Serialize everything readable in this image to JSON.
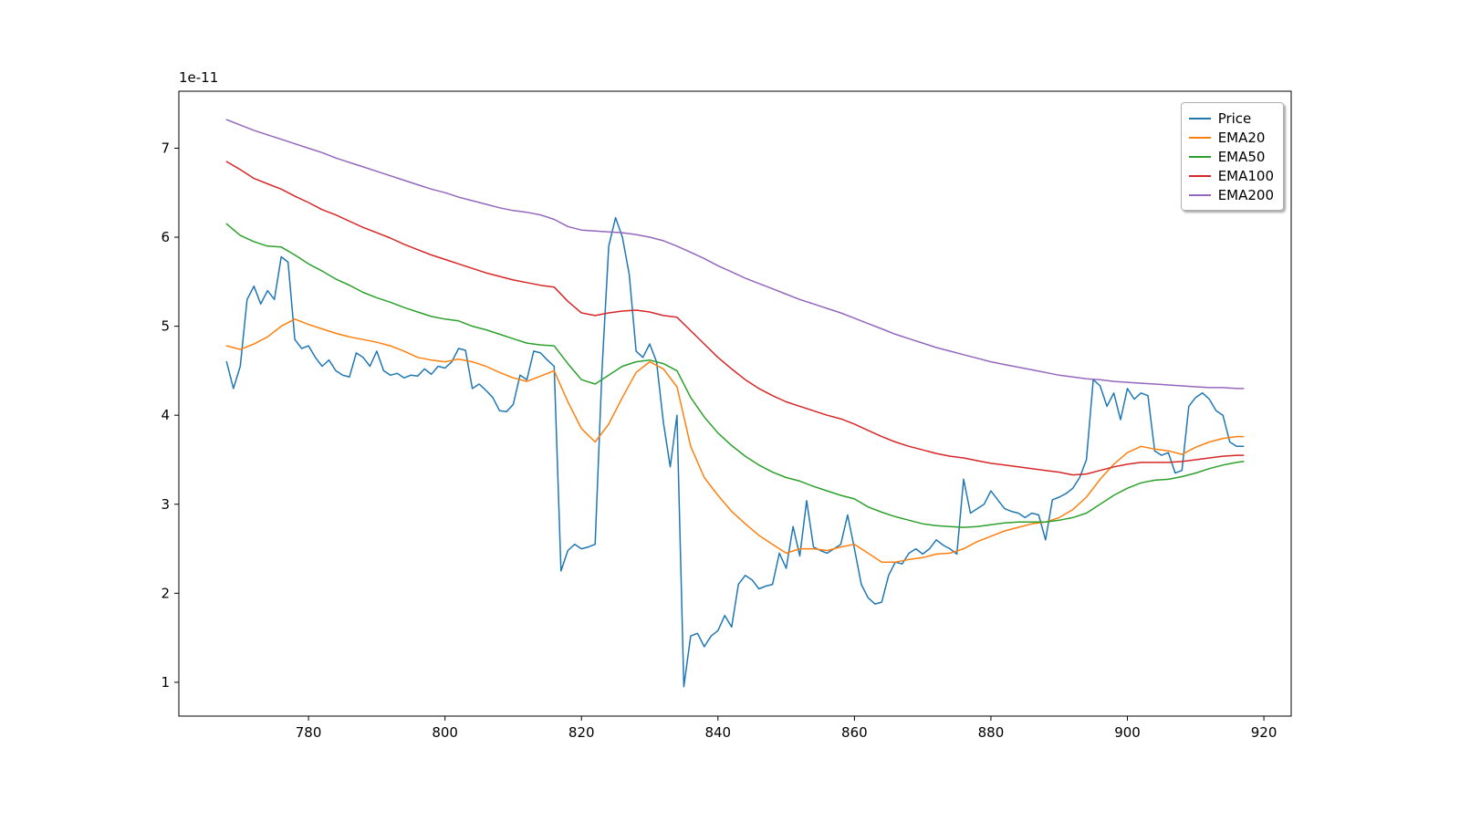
{
  "chart_data": {
    "type": "line",
    "title": "",
    "xlabel": "",
    "ylabel": "",
    "y_offset_label": "1e-11",
    "xlim": [
      761,
      924
    ],
    "ylim": [
      0.62,
      7.64
    ],
    "x_ticks": [
      780,
      800,
      820,
      840,
      860,
      880,
      900,
      920
    ],
    "y_ticks": [
      1,
      2,
      3,
      4,
      5,
      6,
      7
    ],
    "grid": false,
    "legend_position": "upper right",
    "legend_entries": [
      "Price",
      "EMA20",
      "EMA50",
      "EMA100",
      "EMA200"
    ],
    "price_x": [
      768,
      769,
      770,
      771,
      772,
      773,
      774,
      775,
      776,
      777,
      778,
      779,
      780,
      781,
      782,
      783,
      784,
      785,
      786,
      787,
      788,
      789,
      790,
      791,
      792,
      793,
      794,
      795,
      796,
      797,
      798,
      799,
      800,
      801,
      802,
      803,
      804,
      805,
      806,
      807,
      808,
      809,
      810,
      811,
      812,
      813,
      814,
      815,
      816,
      817,
      818,
      819,
      820,
      821,
      822,
      823,
      824,
      825,
      826,
      827,
      828,
      829,
      830,
      831,
      832,
      833,
      834,
      835,
      836,
      837,
      838,
      839,
      840,
      841,
      842,
      843,
      844,
      845,
      846,
      847,
      848,
      849,
      850,
      851,
      852,
      853,
      854,
      855,
      856,
      857,
      858,
      859,
      860,
      861,
      862,
      863,
      864,
      865,
      866,
      867,
      868,
      869,
      870,
      871,
      872,
      873,
      874,
      875,
      876,
      877,
      878,
      879,
      880,
      881,
      882,
      883,
      884,
      885,
      886,
      887,
      888,
      889,
      890,
      891,
      892,
      893,
      894,
      895,
      896,
      897,
      898,
      899,
      900,
      901,
      902,
      903,
      904,
      905,
      906,
      907,
      908,
      909,
      910,
      911,
      912,
      913,
      914,
      915,
      916,
      917
    ],
    "ema_x": [
      768,
      770,
      772,
      774,
      776,
      778,
      780,
      782,
      784,
      786,
      788,
      790,
      792,
      794,
      796,
      798,
      800,
      802,
      804,
      806,
      808,
      810,
      812,
      814,
      816,
      818,
      820,
      822,
      824,
      826,
      828,
      830,
      832,
      834,
      836,
      838,
      840,
      842,
      844,
      846,
      848,
      850,
      852,
      854,
      856,
      858,
      860,
      862,
      864,
      866,
      868,
      870,
      872,
      874,
      876,
      878,
      880,
      882,
      884,
      886,
      888,
      890,
      892,
      894,
      896,
      898,
      900,
      902,
      904,
      906,
      908,
      910,
      912,
      914,
      916,
      917
    ],
    "series": [
      {
        "name": "Price",
        "color": "#1f77b4",
        "x_ref": "price_x",
        "values": [
          4.6,
          4.3,
          4.55,
          5.3,
          5.45,
          5.25,
          5.4,
          5.3,
          5.78,
          5.72,
          4.85,
          4.75,
          4.78,
          4.65,
          4.55,
          4.62,
          4.5,
          4.45,
          4.43,
          4.7,
          4.65,
          4.55,
          4.72,
          4.5,
          4.45,
          4.47,
          4.42,
          4.45,
          4.44,
          4.52,
          4.46,
          4.55,
          4.53,
          4.6,
          4.75,
          4.73,
          4.3,
          4.35,
          4.28,
          4.2,
          4.05,
          4.04,
          4.12,
          4.45,
          4.4,
          4.72,
          4.7,
          4.62,
          4.55,
          2.25,
          2.48,
          2.55,
          2.5,
          2.52,
          2.55,
          4.5,
          5.9,
          6.22,
          6.0,
          5.58,
          4.72,
          4.65,
          4.8,
          4.6,
          3.92,
          3.42,
          4.0,
          0.95,
          1.52,
          1.55,
          1.4,
          1.52,
          1.58,
          1.75,
          1.62,
          2.1,
          2.2,
          2.15,
          2.05,
          2.08,
          2.1,
          2.45,
          2.28,
          2.75,
          2.42,
          3.04,
          2.52,
          2.48,
          2.45,
          2.5,
          2.55,
          2.88,
          2.5,
          2.1,
          1.95,
          1.88,
          1.9,
          2.2,
          2.35,
          2.33,
          2.45,
          2.5,
          2.44,
          2.5,
          2.6,
          2.54,
          2.5,
          2.44,
          3.28,
          2.9,
          2.95,
          3.0,
          3.15,
          3.05,
          2.95,
          2.92,
          2.9,
          2.85,
          2.9,
          2.88,
          2.6,
          3.05,
          3.08,
          3.12,
          3.18,
          3.3,
          3.5,
          4.4,
          4.33,
          4.1,
          4.25,
          3.95,
          4.3,
          4.18,
          4.25,
          4.22,
          3.6,
          3.55,
          3.58,
          3.35,
          3.38,
          4.1,
          4.2,
          4.25,
          4.18,
          4.05,
          4.0,
          3.7,
          3.65,
          3.65
        ]
      },
      {
        "name": "EMA20",
        "color": "#ff7f0e",
        "x_ref": "ema_x",
        "values": [
          4.78,
          4.74,
          4.8,
          4.88,
          5.0,
          5.08,
          5.02,
          4.97,
          4.92,
          4.88,
          4.85,
          4.82,
          4.78,
          4.72,
          4.65,
          4.62,
          4.6,
          4.63,
          4.6,
          4.55,
          4.48,
          4.42,
          4.38,
          4.44,
          4.5,
          4.15,
          3.85,
          3.7,
          3.9,
          4.2,
          4.48,
          4.6,
          4.52,
          4.32,
          3.65,
          3.3,
          3.1,
          2.92,
          2.78,
          2.65,
          2.55,
          2.45,
          2.5,
          2.5,
          2.48,
          2.52,
          2.55,
          2.45,
          2.35,
          2.35,
          2.38,
          2.4,
          2.44,
          2.45,
          2.5,
          2.58,
          2.64,
          2.7,
          2.74,
          2.78,
          2.8,
          2.85,
          2.94,
          3.08,
          3.28,
          3.45,
          3.58,
          3.65,
          3.62,
          3.6,
          3.56,
          3.64,
          3.7,
          3.74,
          3.76,
          3.76
        ]
      },
      {
        "name": "EMA50",
        "color": "#2ca02c",
        "x_ref": "ema_x",
        "values": [
          6.15,
          6.02,
          5.95,
          5.9,
          5.89,
          5.8,
          5.7,
          5.62,
          5.53,
          5.46,
          5.38,
          5.32,
          5.27,
          5.21,
          5.16,
          5.11,
          5.08,
          5.06,
          5.0,
          4.96,
          4.91,
          4.86,
          4.81,
          4.79,
          4.78,
          4.58,
          4.4,
          4.35,
          4.45,
          4.55,
          4.6,
          4.62,
          4.58,
          4.5,
          4.2,
          3.98,
          3.8,
          3.66,
          3.54,
          3.44,
          3.36,
          3.3,
          3.26,
          3.2,
          3.15,
          3.1,
          3.06,
          2.97,
          2.91,
          2.86,
          2.82,
          2.78,
          2.76,
          2.75,
          2.74,
          2.75,
          2.77,
          2.79,
          2.8,
          2.8,
          2.8,
          2.82,
          2.85,
          2.9,
          3.0,
          3.1,
          3.18,
          3.24,
          3.27,
          3.28,
          3.31,
          3.35,
          3.4,
          3.44,
          3.47,
          3.48
        ]
      },
      {
        "name": "EMA100",
        "color": "#d62728",
        "x_ref": "ema_x",
        "values": [
          6.85,
          6.76,
          6.66,
          6.6,
          6.54,
          6.46,
          6.39,
          6.31,
          6.25,
          6.18,
          6.11,
          6.05,
          5.99,
          5.92,
          5.86,
          5.8,
          5.75,
          5.7,
          5.65,
          5.6,
          5.56,
          5.52,
          5.49,
          5.46,
          5.44,
          5.28,
          5.15,
          5.12,
          5.15,
          5.17,
          5.18,
          5.16,
          5.12,
          5.1,
          4.95,
          4.8,
          4.65,
          4.52,
          4.4,
          4.3,
          4.22,
          4.15,
          4.1,
          4.05,
          4.0,
          3.96,
          3.9,
          3.83,
          3.76,
          3.7,
          3.65,
          3.61,
          3.57,
          3.54,
          3.52,
          3.49,
          3.46,
          3.44,
          3.42,
          3.4,
          3.38,
          3.36,
          3.33,
          3.34,
          3.38,
          3.42,
          3.45,
          3.47,
          3.47,
          3.47,
          3.48,
          3.5,
          3.52,
          3.54,
          3.55,
          3.55
        ]
      },
      {
        "name": "EMA200",
        "color": "#9467bd",
        "x_ref": "ema_x",
        "values": [
          7.32,
          7.26,
          7.2,
          7.15,
          7.1,
          7.05,
          7.0,
          6.95,
          6.89,
          6.84,
          6.79,
          6.74,
          6.69,
          6.64,
          6.59,
          6.54,
          6.5,
          6.45,
          6.41,
          6.37,
          6.33,
          6.3,
          6.28,
          6.25,
          6.2,
          6.12,
          6.08,
          6.07,
          6.06,
          6.05,
          6.03,
          6.0,
          5.96,
          5.9,
          5.83,
          5.76,
          5.68,
          5.61,
          5.54,
          5.48,
          5.42,
          5.36,
          5.3,
          5.25,
          5.2,
          5.15,
          5.09,
          5.03,
          4.97,
          4.91,
          4.86,
          4.81,
          4.76,
          4.72,
          4.68,
          4.64,
          4.6,
          4.57,
          4.54,
          4.51,
          4.48,
          4.45,
          4.43,
          4.41,
          4.4,
          4.38,
          4.37,
          4.36,
          4.35,
          4.34,
          4.33,
          4.32,
          4.31,
          4.31,
          4.3,
          4.3
        ]
      }
    ]
  }
}
